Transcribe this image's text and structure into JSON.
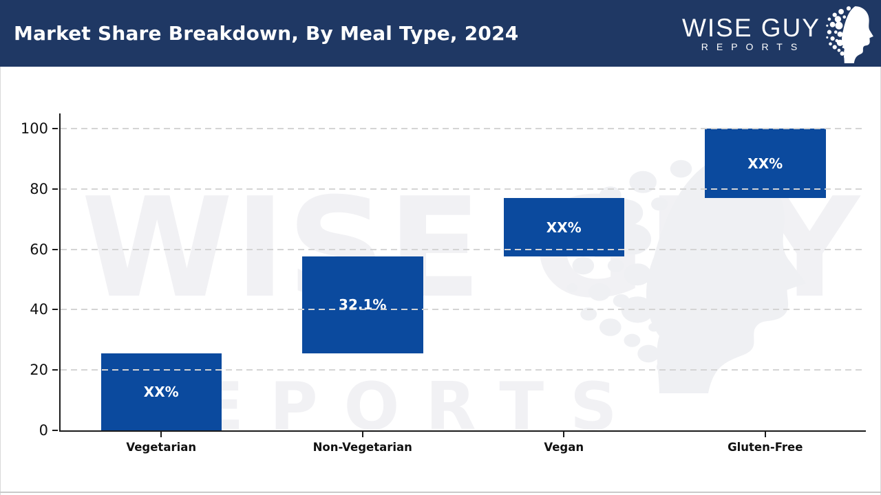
{
  "header": {
    "title": "Market Share Breakdown, By Meal Type, 2024",
    "logo": {
      "line1": "WISE GUY",
      "line2": "REPORTS"
    }
  },
  "watermark": {
    "line1": "WISE GUY",
    "line2": "REPORTS"
  },
  "icons": {
    "logo_face": "face-profile-made-of-dots",
    "watermark_face": "face-profile-made-of-dots"
  },
  "colors": {
    "header_bg": "#1f3864",
    "bar_blue": "#0b4a9e",
    "bar_label": "#ffffff",
    "gridline": "#d4d4d4",
    "axis": "#1a1a1a",
    "watermark": "#f1f1f4",
    "bottom_rule": "#c9c9c9"
  },
  "chart_data": {
    "type": "bar",
    "subtype": "waterfall",
    "title": "Market Share Breakdown, By Meal Type, 2024",
    "xlabel": "",
    "ylabel": "",
    "categories": [
      "Vegetarian",
      "Non-Vegetarian",
      "Vegan",
      "Gluten-Free"
    ],
    "segments": [
      {
        "category": "Vegetarian",
        "start": 0,
        "end": 25.6,
        "value": 25.6,
        "label": "XX%"
      },
      {
        "category": "Non-Vegetarian",
        "start": 25.6,
        "end": 57.7,
        "value": 32.1,
        "label": "32.1%"
      },
      {
        "category": "Vegan",
        "start": 57.7,
        "end": 76.9,
        "value": 19.2,
        "label": "XX%"
      },
      {
        "category": "Gluten-Free",
        "start": 76.9,
        "end": 100,
        "value": 23.1,
        "label": "XX%"
      }
    ],
    "yticks": [
      0,
      20,
      40,
      60,
      80,
      100
    ],
    "ylim": [
      0,
      105
    ],
    "grid": "horizontal-dashed",
    "legend": "none",
    "bar_color": "#0b4a9e",
    "label_color": "#ffffff"
  }
}
